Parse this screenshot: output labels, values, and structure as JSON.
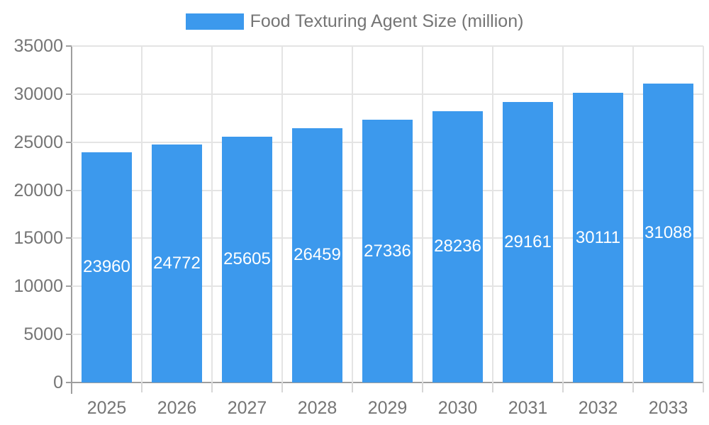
{
  "chart_data": {
    "type": "bar",
    "title": "Food Texturing Agent Size (million)",
    "categories": [
      "2025",
      "2026",
      "2027",
      "2028",
      "2029",
      "2030",
      "2031",
      "2032",
      "2033"
    ],
    "values": [
      23960,
      24772,
      25605,
      26459,
      27336,
      28236,
      29161,
      30111,
      31088
    ],
    "xlabel": "",
    "ylabel": "",
    "ylim": [
      0,
      35000
    ],
    "y_tick_step": 5000,
    "y_tick_labels": [
      "0",
      "5000",
      "10000",
      "15000",
      "20000",
      "25000",
      "30000",
      "35000"
    ],
    "legend": [
      {
        "label": "Food Texturing Agent Size (million)",
        "color": "#3C99ED"
      }
    ],
    "legend_position": "top-center",
    "grid": true,
    "grid_vertical": true,
    "bar_labels_inside": true,
    "colors": {
      "bar": "#3C99ED",
      "bar_label": "#FFFFFF",
      "axis": "#9E9E9E",
      "gridline": "#E4E4E4",
      "category_tick": "#D6D6D6",
      "text": "#757575",
      "background": "#FFFFFF"
    }
  }
}
